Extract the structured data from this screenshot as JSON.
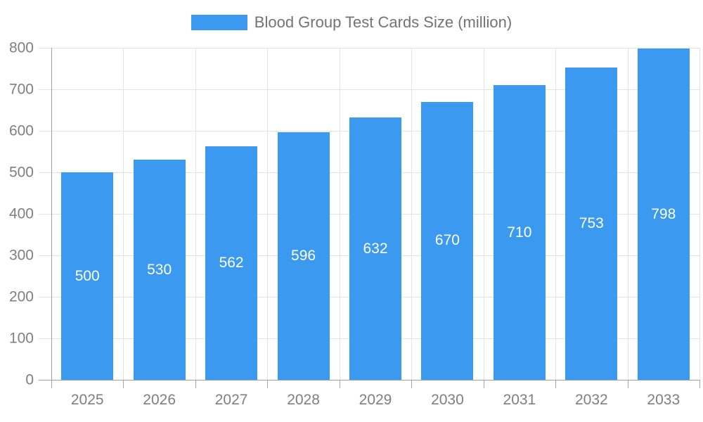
{
  "legend": {
    "label": "Blood Group Test Cards Size (million)"
  },
  "chart_data": {
    "type": "bar",
    "title": "Blood Group Test Cards Size (million)",
    "categories": [
      "2025",
      "2026",
      "2027",
      "2028",
      "2029",
      "2030",
      "2031",
      "2032",
      "2033"
    ],
    "series": [
      {
        "name": "Blood Group Test Cards Size (million)",
        "values": [
          500,
          530,
          562,
          596,
          632,
          670,
          710,
          753,
          798
        ],
        "color": "#3b9af0"
      }
    ],
    "xlabel": "",
    "ylabel": "",
    "ylim": [
      0,
      800
    ],
    "y_tick_labels": [
      "0",
      "100",
      "200",
      "300",
      "400",
      "500",
      "600",
      "700",
      "800"
    ],
    "grid": true,
    "legend_position": "top-center",
    "bar_label_position": "inside-center"
  },
  "colors": {
    "bar": "#3b9af0",
    "bar_label_text": "#ffffff",
    "axis_line": "#9e9e9e",
    "tick_mark": "#a6a6a6",
    "gridline": "#e3e3e3",
    "tick_label": "#7f7f7f",
    "legend_text": "#737373",
    "background": "#ffffff"
  }
}
